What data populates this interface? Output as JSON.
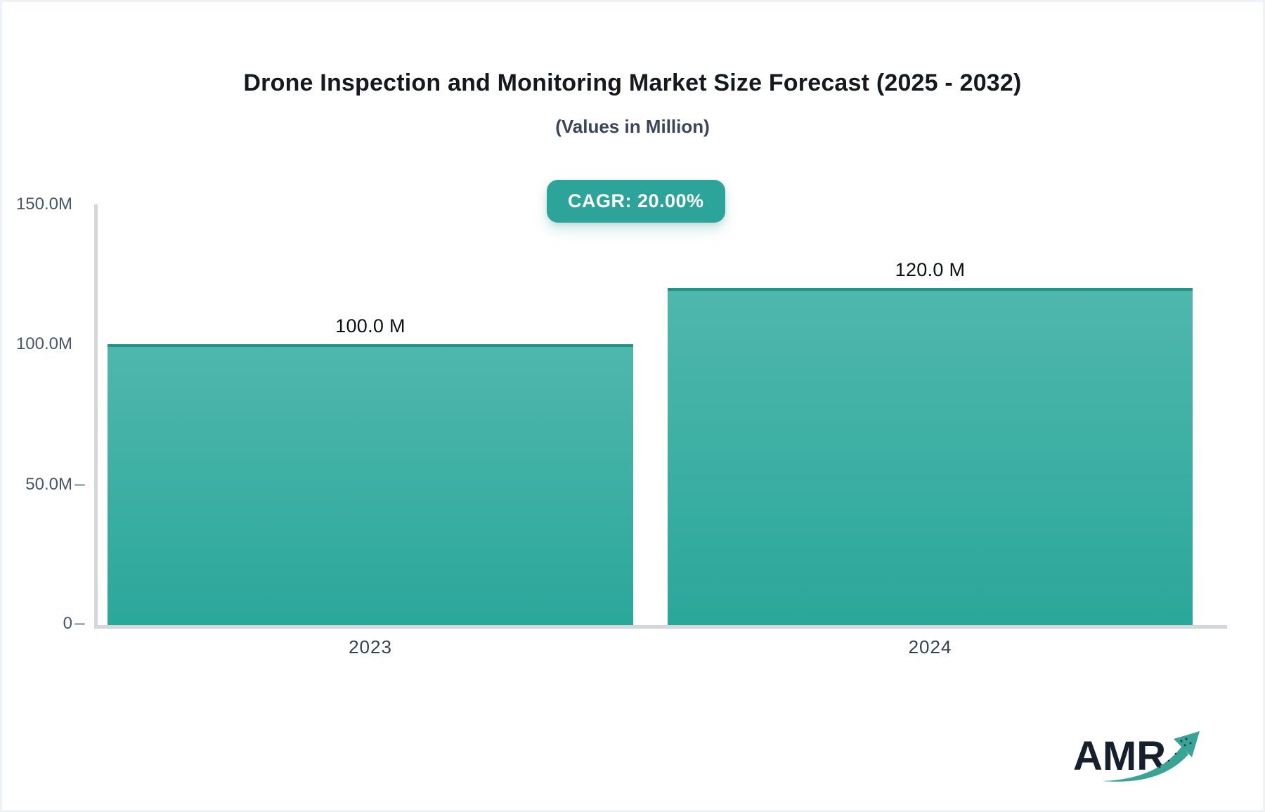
{
  "title": "Drone Inspection and Monitoring Market Size Forecast (2025 - 2032)",
  "subtitle": "(Values in Million)",
  "badge": {
    "label": "CAGR: 20.00%",
    "bg_color": "#2ca49a",
    "text_color": "#ffffff"
  },
  "logo": {
    "text": "AMR",
    "text_color": "#16202d",
    "arrow_color": "#39a396"
  },
  "chart_data": {
    "type": "bar",
    "title": "Drone Inspection and Monitoring Market Size Forecast (2025 - 2032)",
    "subtitle": "(Values in Million)",
    "categories": [
      "2023",
      "2024"
    ],
    "values": [
      100.0,
      120.0
    ],
    "value_labels": [
      "100.0 M",
      "120.0 M"
    ],
    "cagr_percent": 20.0,
    "ylim": [
      0,
      150
    ],
    "ytick_values": [
      150,
      100,
      50,
      0
    ],
    "ytick_labels": [
      "150.0M",
      "100.0M",
      "50.0M",
      "0"
    ],
    "grid": false,
    "legend": false,
    "bar_colors": {
      "gradient_top": "#4fb7ad",
      "gradient_bottom": "#2ba79a",
      "top_border": "#23938a"
    },
    "axis_color": "#d3d7de",
    "tick_color": "#a9b1bd",
    "ylabel_color": "#49556a",
    "xlabel_color": "#33404f"
  }
}
